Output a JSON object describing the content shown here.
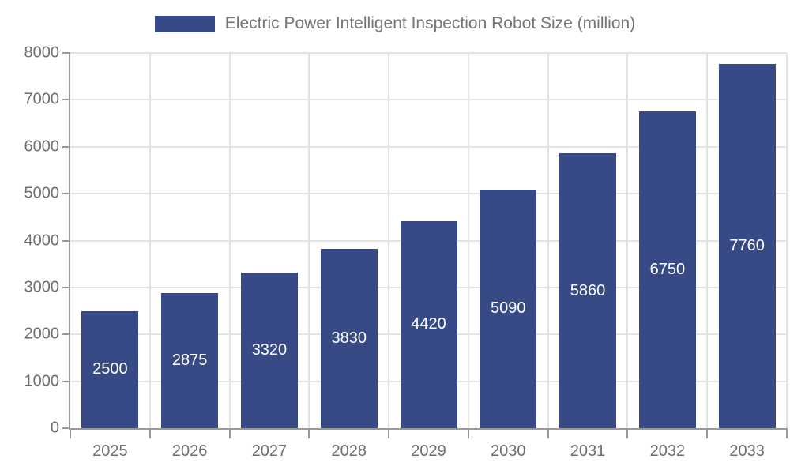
{
  "legend": {
    "label": "Electric Power Intelligent Inspection Robot Size (million)"
  },
  "chart_data": {
    "type": "bar",
    "title": "Electric Power Intelligent Inspection Robot Size (million)",
    "categories": [
      "2025",
      "2026",
      "2027",
      "2028",
      "2029",
      "2030",
      "2031",
      "2032",
      "2033"
    ],
    "values": [
      2500,
      2875,
      3320,
      3830,
      4420,
      5090,
      5860,
      6750,
      7760
    ],
    "value_labels_visible": true,
    "xlabel": "",
    "ylabel": "",
    "ylim": [
      0,
      8000
    ],
    "ytick_step": 1000,
    "yticks": [
      "0",
      "1000",
      "2000",
      "3000",
      "4000",
      "5000",
      "6000",
      "7000",
      "8000"
    ],
    "grid": true,
    "legend_position": "top"
  },
  "colors": {
    "bar": "#384A85",
    "bar_value_label": "#ffffff",
    "grid_line": "#e3e3e3",
    "axis_line": "#9a9a9a",
    "tick_text": "#6e6e6e",
    "legend_text": "#757575",
    "background": "#ffffff"
  }
}
